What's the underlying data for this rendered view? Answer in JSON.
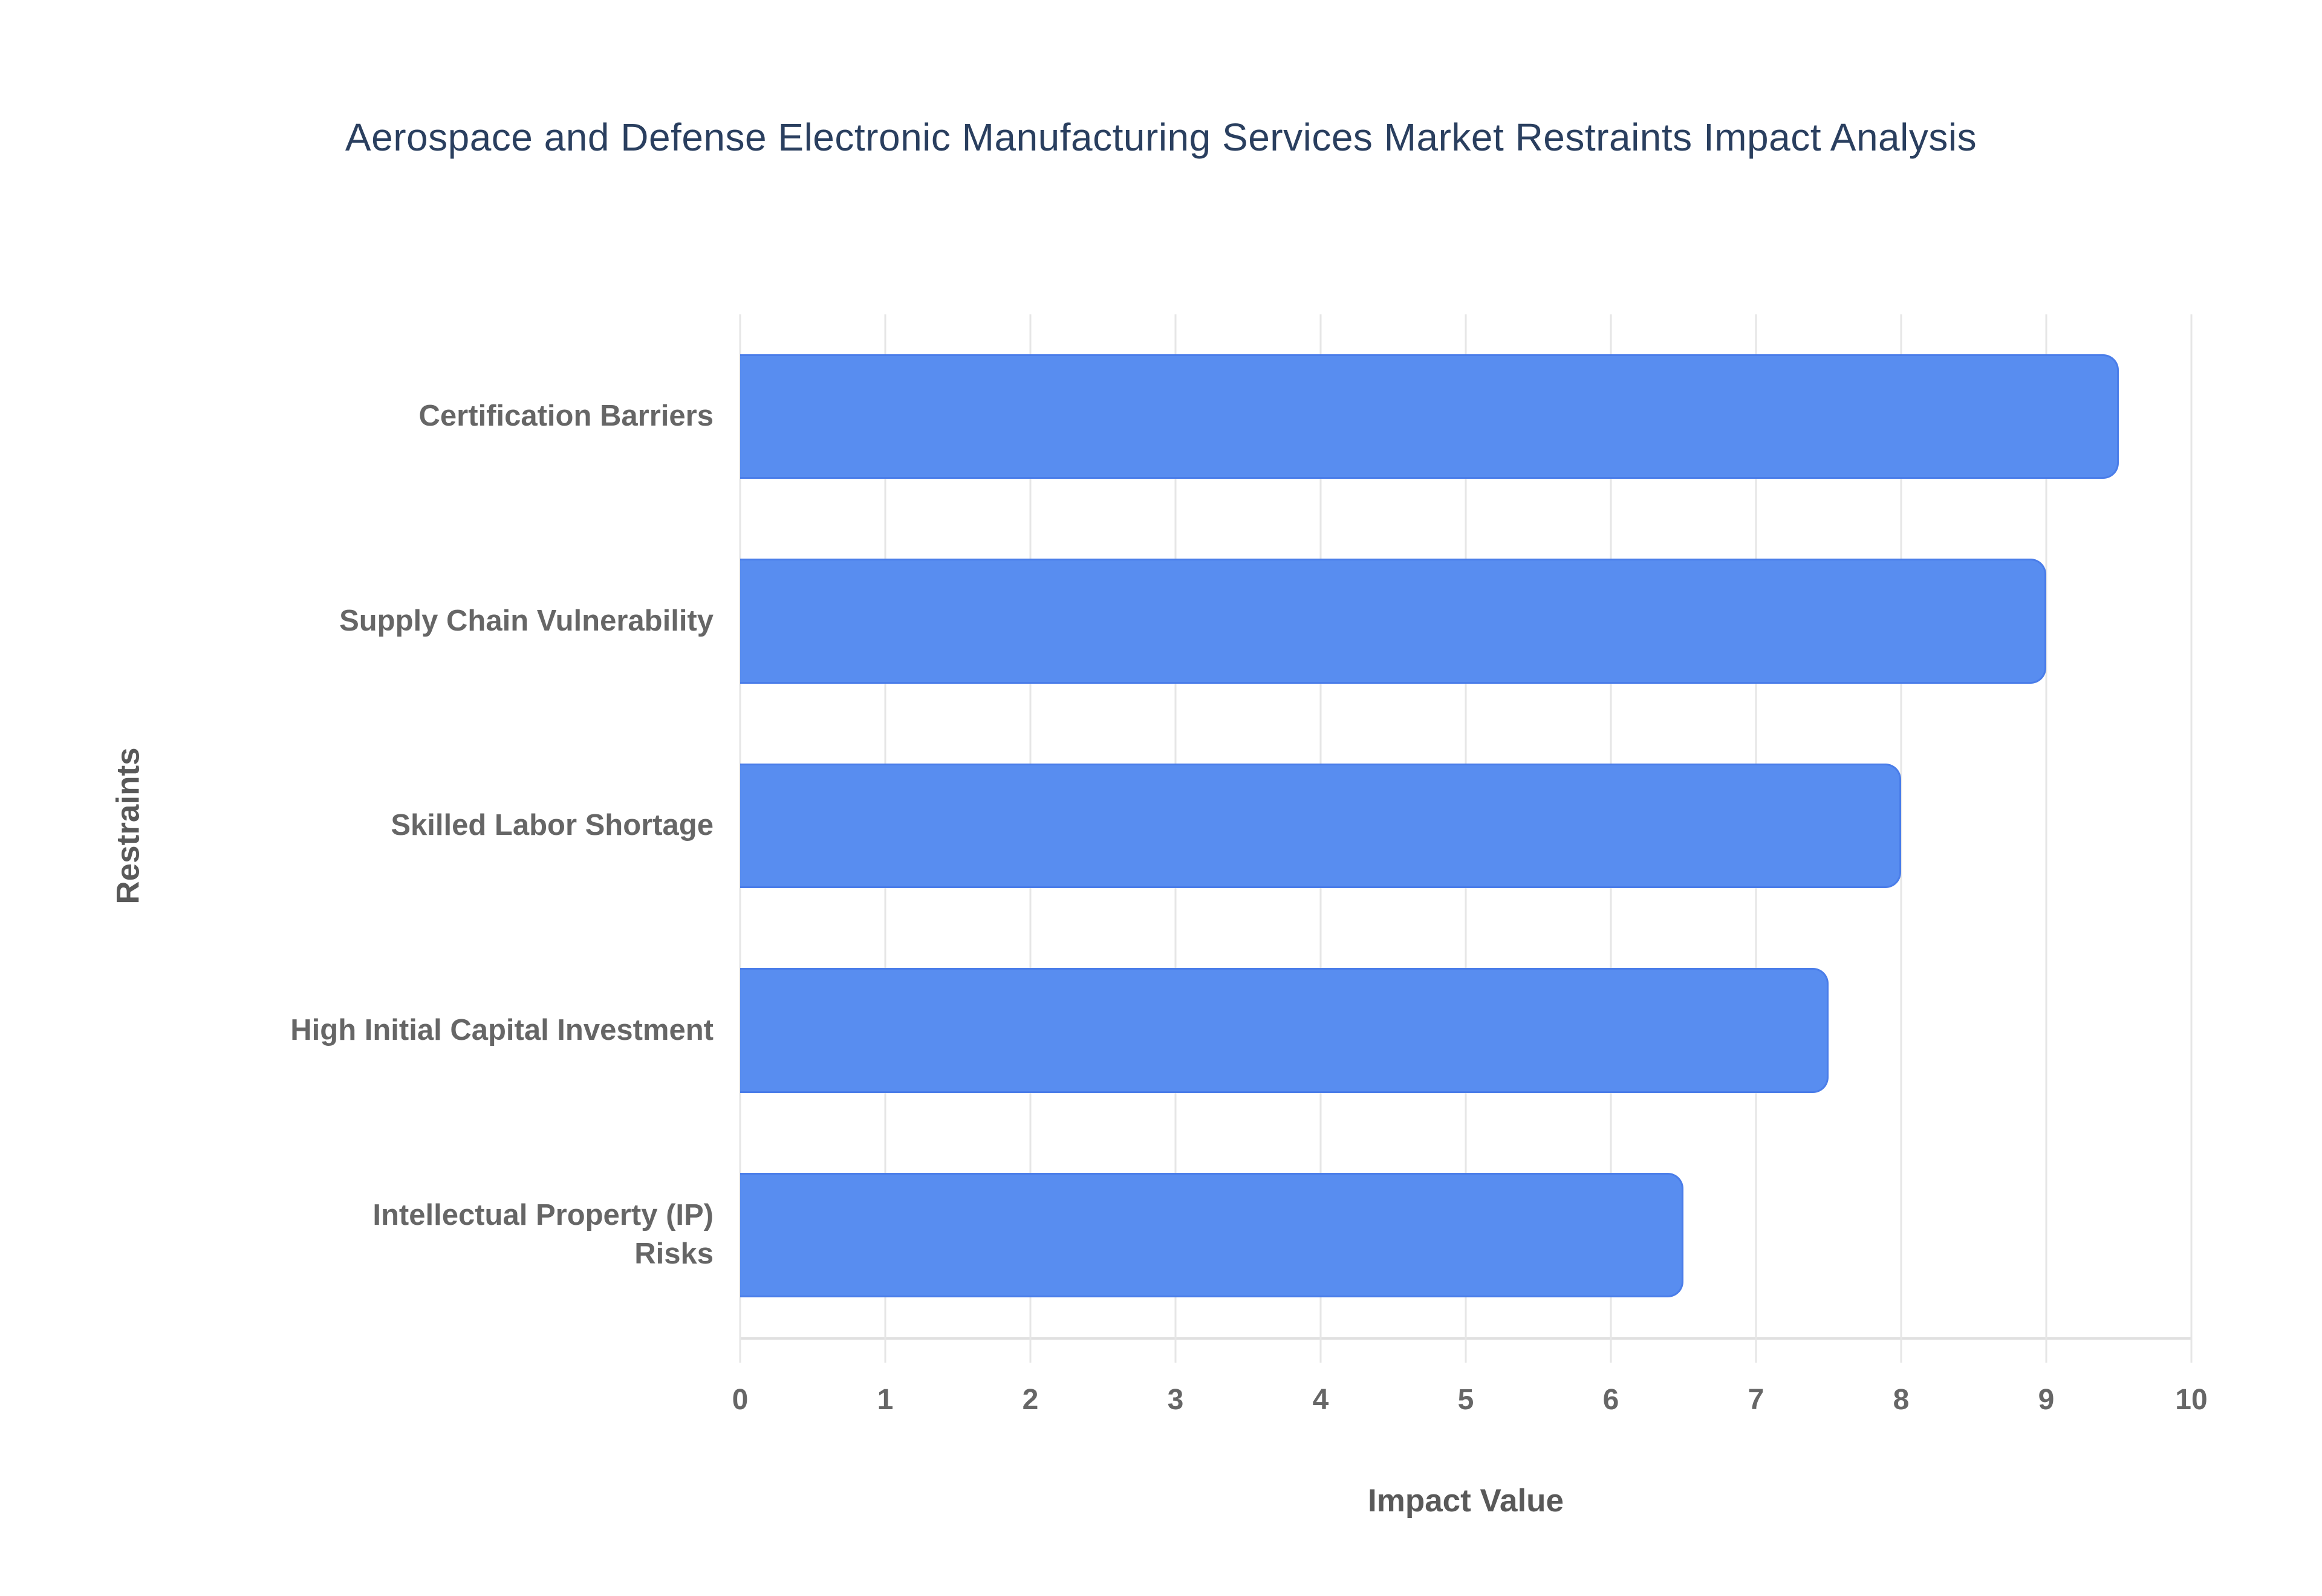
{
  "chart_data": {
    "type": "bar",
    "orientation": "horizontal",
    "title": "Aerospace and Defense Electronic Manufacturing Services Market Restraints Impact Analysis",
    "categories": [
      "Certification Barriers",
      "Supply Chain Vulnerability",
      "Skilled Labor Shortage",
      "High Initial Capital Investment",
      "Intellectual Property (IP) Risks"
    ],
    "values": [
      9.5,
      9,
      8,
      7.5,
      6.5
    ],
    "xlabel": "Impact Value",
    "ylabel": "Restraints",
    "xlim": [
      0,
      10
    ],
    "xticks": [
      0,
      1,
      2,
      3,
      4,
      5,
      6,
      7,
      8,
      9,
      10
    ],
    "grid": "vertical",
    "legend": "none",
    "colors": {
      "bar_fill": "#588DF0",
      "bar_border": "#4A7DE9",
      "title": "#2A3F5F",
      "tick_label": "#666666",
      "axis_title": "#595959",
      "gridline": "#E6E6E6",
      "axis_line": "#E0E0E0"
    }
  }
}
